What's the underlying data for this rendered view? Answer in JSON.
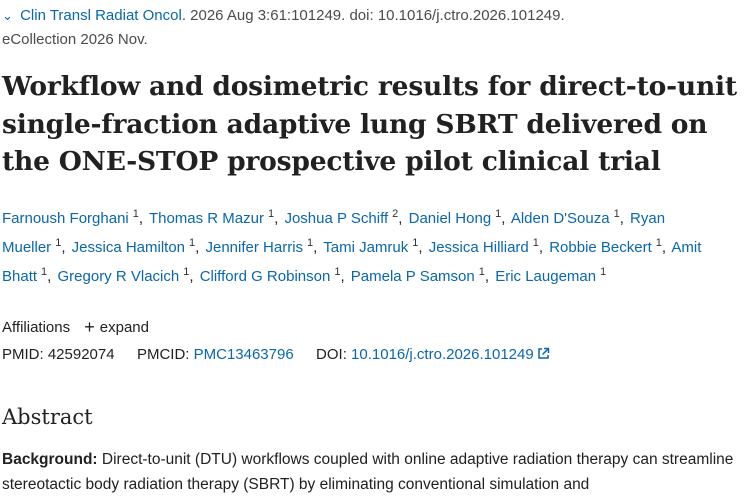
{
  "citation": {
    "journal": "Clin Transl Radiat Oncol",
    "details": ". 2026 Aug 3:61:101249. doi: 10.1016/j.ctro.2026.101249.",
    "ecollection": "eCollection 2026 Nov."
  },
  "title": "Workflow and dosimetric results for direct-to-unit single-fraction adaptive lung SBRT delivered on the ONE-STOP prospective pilot clinical trial",
  "authors": [
    {
      "name": "Farnoush Forghani",
      "aff": "1"
    },
    {
      "name": "Thomas R Mazur",
      "aff": "1"
    },
    {
      "name": "Joshua P Schiff",
      "aff": "2"
    },
    {
      "name": "Daniel Hong",
      "aff": "1"
    },
    {
      "name": "Alden D'Souza",
      "aff": "1"
    },
    {
      "name": "Ryan Mueller",
      "aff": "1"
    },
    {
      "name": "Jessica Hamilton",
      "aff": "1"
    },
    {
      "name": "Jennifer Harris",
      "aff": "1"
    },
    {
      "name": "Tami Jamruk",
      "aff": "1"
    },
    {
      "name": "Jessica Hilliard",
      "aff": "1"
    },
    {
      "name": "Robbie Beckert",
      "aff": "1"
    },
    {
      "name": "Amit Bhatt",
      "aff": "1"
    },
    {
      "name": "Gregory R Vlacich",
      "aff": "1"
    },
    {
      "name": "Clifford G Robinson",
      "aff": "1"
    },
    {
      "name": "Pamela P Samson",
      "aff": "1"
    },
    {
      "name": "Eric Laugeman",
      "aff": "1"
    }
  ],
  "affiliations": {
    "label": "Affiliations",
    "expand": "expand"
  },
  "ids": {
    "pmid_label": "PMID:",
    "pmid": "42592074",
    "pmcid_label": "PMCID:",
    "pmcid": "PMC13463796",
    "doi_label": "DOI:",
    "doi": "10.1016/j.ctro.2026.101249"
  },
  "abstract": {
    "heading": "Abstract",
    "background_label": "Background:",
    "background_text": " Direct-to-unit (DTU) workflows coupled with online adaptive radiation therapy can streamline stereotactic body radiation therapy (SBRT) by eliminating conventional simulation and"
  },
  "colors": {
    "link": "#0b67a8",
    "text": "#212121"
  }
}
